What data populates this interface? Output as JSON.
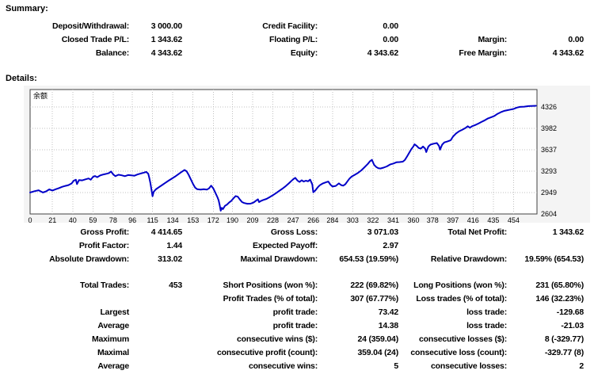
{
  "summary": {
    "title": "Summary:",
    "rows": [
      {
        "cells": [
          "Deposit/Withdrawal:",
          "3 000.00",
          "Credit Facility:",
          "0.00",
          "",
          ""
        ]
      },
      {
        "cells": [
          "Closed Trade P/L:",
          "1 343.62",
          "Floating P/L:",
          "0.00",
          "Margin:",
          "0.00"
        ]
      },
      {
        "cells": [
          "Balance:",
          "4 343.62",
          "Equity:",
          "4 343.62",
          "Free Margin:",
          "4 343.62"
        ]
      }
    ]
  },
  "details": {
    "title": "Details:",
    "blockA": {
      "rows": [
        {
          "cells": [
            "Gross Profit:",
            "4 414.65",
            "Gross Loss:",
            "3 071.03",
            "Total Net Profit:",
            "1 343.62"
          ]
        },
        {
          "cells": [
            "Profit Factor:",
            "1.44",
            "Expected Payoff:",
            "2.97",
            "",
            ""
          ]
        },
        {
          "cells": [
            "Absolute Drawdown:",
            "313.02",
            "Maximal Drawdown:",
            "654.53 (19.59%)",
            "Relative Drawdown:",
            "19.59% (654.53)"
          ]
        }
      ]
    },
    "blockB": {
      "rows": [
        {
          "cells": [
            "Total Trades:",
            "453",
            "Short Positions (won %):",
            "222 (69.82%)",
            "Long Positions (won %):",
            "231 (65.80%)"
          ]
        },
        {
          "cells": [
            "",
            "",
            "Profit Trades (% of total):",
            "307 (67.77%)",
            "Loss trades (% of total):",
            "146 (32.23%)"
          ]
        },
        {
          "cells": [
            "Largest",
            "",
            "profit trade:",
            "73.42",
            "loss trade:",
            "-129.68"
          ]
        },
        {
          "cells": [
            "Average",
            "",
            "profit trade:",
            "14.38",
            "loss trade:",
            "-21.03"
          ]
        },
        {
          "cells": [
            "Maximum",
            "",
            "consecutive wins ($):",
            "24 (359.04)",
            "consecutive losses ($):",
            "8 (-329.77)"
          ]
        },
        {
          "cells": [
            "Maximal",
            "",
            "consecutive profit (count):",
            "359.04 (24)",
            "consecutive loss (count):",
            "-329.77 (8)"
          ]
        },
        {
          "cells": [
            "Average",
            "",
            "consecutive wins:",
            "5",
            "consecutive losses:",
            "2"
          ]
        }
      ]
    }
  },
  "chart_data": {
    "type": "line",
    "title": "",
    "legend": "余额",
    "xlabel": "",
    "ylabel": "",
    "xlim": [
      0,
      476
    ],
    "ylim": [
      2604,
      4607
    ],
    "x_ticks": [
      0,
      21,
      40,
      59,
      78,
      96,
      115,
      134,
      153,
      172,
      190,
      209,
      228,
      247,
      266,
      284,
      303,
      322,
      341,
      360,
      378,
      397,
      416,
      435,
      454
    ],
    "y_ticks": [
      2604,
      2949,
      3293,
      3637,
      3982,
      4326
    ],
    "grid": "dotted",
    "legend_position": "top-left",
    "series": [
      {
        "name": "余额",
        "color": "#0000C8",
        "points": [
          [
            0,
            2950
          ],
          [
            4,
            2970
          ],
          [
            8,
            2985
          ],
          [
            12,
            2950
          ],
          [
            15,
            2968
          ],
          [
            18,
            3000
          ],
          [
            21,
            2982
          ],
          [
            24,
            3002
          ],
          [
            27,
            3020
          ],
          [
            30,
            3040
          ],
          [
            33,
            3055
          ],
          [
            36,
            3068
          ],
          [
            39,
            3095
          ],
          [
            41,
            3140
          ],
          [
            43,
            3155
          ],
          [
            44,
            3085
          ],
          [
            46,
            3150
          ],
          [
            49,
            3145
          ],
          [
            52,
            3162
          ],
          [
            55,
            3175
          ],
          [
            57,
            3155
          ],
          [
            59,
            3200
          ],
          [
            61,
            3215
          ],
          [
            63,
            3196
          ],
          [
            66,
            3225
          ],
          [
            69,
            3240
          ],
          [
            72,
            3252
          ],
          [
            74,
            3262
          ],
          [
            76,
            3288
          ],
          [
            78,
            3242
          ],
          [
            80,
            3212
          ],
          [
            83,
            3236
          ],
          [
            86,
            3226
          ],
          [
            89,
            3212
          ],
          [
            92,
            3230
          ],
          [
            95,
            3226
          ],
          [
            98,
            3220
          ],
          [
            101,
            3240
          ],
          [
            104,
            3256
          ],
          [
            107,
            3270
          ],
          [
            109,
            3282
          ],
          [
            111,
            3252
          ],
          [
            112,
            3180
          ],
          [
            113,
            3100
          ],
          [
            115,
            2890
          ],
          [
            116,
            2960
          ],
          [
            118,
            3000
          ],
          [
            121,
            3035
          ],
          [
            124,
            3070
          ],
          [
            127,
            3105
          ],
          [
            130,
            3140
          ],
          [
            133,
            3172
          ],
          [
            136,
            3205
          ],
          [
            139,
            3240
          ],
          [
            142,
            3278
          ],
          [
            145,
            3312
          ],
          [
            147,
            3292
          ],
          [
            149,
            3232
          ],
          [
            151,
            3160
          ],
          [
            153,
            3088
          ],
          [
            155,
            3028
          ],
          [
            157,
            3002
          ],
          [
            160,
            2996
          ],
          [
            163,
            3002
          ],
          [
            166,
            2996
          ],
          [
            168,
            3016
          ],
          [
            170,
            3060
          ],
          [
            172,
            3016
          ],
          [
            174,
            2946
          ],
          [
            176,
            2872
          ],
          [
            177,
            2826
          ],
          [
            178,
            2752
          ],
          [
            179,
            2656
          ],
          [
            180,
            2702
          ],
          [
            181,
            2682
          ],
          [
            183,
            2736
          ],
          [
            185,
            2756
          ],
          [
            187,
            2790
          ],
          [
            189,
            2816
          ],
          [
            191,
            2856
          ],
          [
            193,
            2892
          ],
          [
            195,
            2882
          ],
          [
            197,
            2836
          ],
          [
            199,
            2796
          ],
          [
            201,
            2780
          ],
          [
            204,
            2768
          ],
          [
            207,
            2770
          ],
          [
            210,
            2790
          ],
          [
            212,
            2816
          ],
          [
            214,
            2840
          ],
          [
            215,
            2796
          ],
          [
            217,
            2816
          ],
          [
            219,
            2830
          ],
          [
            222,
            2846
          ],
          [
            225,
            2876
          ],
          [
            228,
            2906
          ],
          [
            231,
            2940
          ],
          [
            234,
            2976
          ],
          [
            237,
            3012
          ],
          [
            240,
            3052
          ],
          [
            243,
            3096
          ],
          [
            245,
            3130
          ],
          [
            247,
            3162
          ],
          [
            249,
            3186
          ],
          [
            251,
            3142
          ],
          [
            253,
            3120
          ],
          [
            255,
            3146
          ],
          [
            257,
            3126
          ],
          [
            259,
            3140
          ],
          [
            261,
            3130
          ],
          [
            263,
            3156
          ],
          [
            265,
            3080
          ],
          [
            266,
            2952
          ],
          [
            268,
            2986
          ],
          [
            270,
            3030
          ],
          [
            272,
            3066
          ],
          [
            275,
            3096
          ],
          [
            278,
            3116
          ],
          [
            280,
            3126
          ],
          [
            282,
            3076
          ],
          [
            284,
            3046
          ],
          [
            287,
            3056
          ],
          [
            290,
            3096
          ],
          [
            292,
            3070
          ],
          [
            294,
            3060
          ],
          [
            296,
            3082
          ],
          [
            298,
            3130
          ],
          [
            300,
            3176
          ],
          [
            302,
            3206
          ],
          [
            305,
            3236
          ],
          [
            308,
            3266
          ],
          [
            311,
            3306
          ],
          [
            314,
            3356
          ],
          [
            317,
            3406
          ],
          [
            319,
            3450
          ],
          [
            321,
            3476
          ],
          [
            323,
            3396
          ],
          [
            325,
            3360
          ],
          [
            327,
            3340
          ],
          [
            329,
            3336
          ],
          [
            332,
            3350
          ],
          [
            335,
            3370
          ],
          [
            338,
            3400
          ],
          [
            341,
            3416
          ],
          [
            344,
            3436
          ],
          [
            347,
            3440
          ],
          [
            350,
            3446
          ],
          [
            352,
            3476
          ],
          [
            354,
            3530
          ],
          [
            356,
            3590
          ],
          [
            358,
            3646
          ],
          [
            360,
            3692
          ],
          [
            361,
            3726
          ],
          [
            363,
            3700
          ],
          [
            365,
            3666
          ],
          [
            367,
            3656
          ],
          [
            369,
            3690
          ],
          [
            371,
            3656
          ],
          [
            372,
            3600
          ],
          [
            374,
            3690
          ],
          [
            376,
            3720
          ],
          [
            379,
            3736
          ],
          [
            382,
            3746
          ],
          [
            384,
            3700
          ],
          [
            385,
            3640
          ],
          [
            387,
            3720
          ],
          [
            389,
            3756
          ],
          [
            392,
            3772
          ],
          [
            395,
            3792
          ],
          [
            397,
            3846
          ],
          [
            400,
            3900
          ],
          [
            403,
            3936
          ],
          [
            406,
            3962
          ],
          [
            409,
            3990
          ],
          [
            411,
            4016
          ],
          [
            413,
            3992
          ],
          [
            415,
            4016
          ],
          [
            418,
            4036
          ],
          [
            421,
            4060
          ],
          [
            424,
            4086
          ],
          [
            427,
            4112
          ],
          [
            430,
            4142
          ],
          [
            433,
            4162
          ],
          [
            436,
            4182
          ],
          [
            439,
            4216
          ],
          [
            442,
            4242
          ],
          [
            445,
            4262
          ],
          [
            448,
            4274
          ],
          [
            451,
            4284
          ],
          [
            454,
            4294
          ],
          [
            457,
            4316
          ],
          [
            460,
            4328
          ],
          [
            464,
            4332
          ],
          [
            468,
            4340
          ],
          [
            475,
            4345
          ]
        ]
      }
    ]
  },
  "colors": {
    "line": "#0000C8",
    "grid": "#c0c0c0",
    "plot_border": "#404040",
    "plot_bg": "#ffffff",
    "chart_margin_bg": "#f4f4f4",
    "text": "#000000"
  }
}
